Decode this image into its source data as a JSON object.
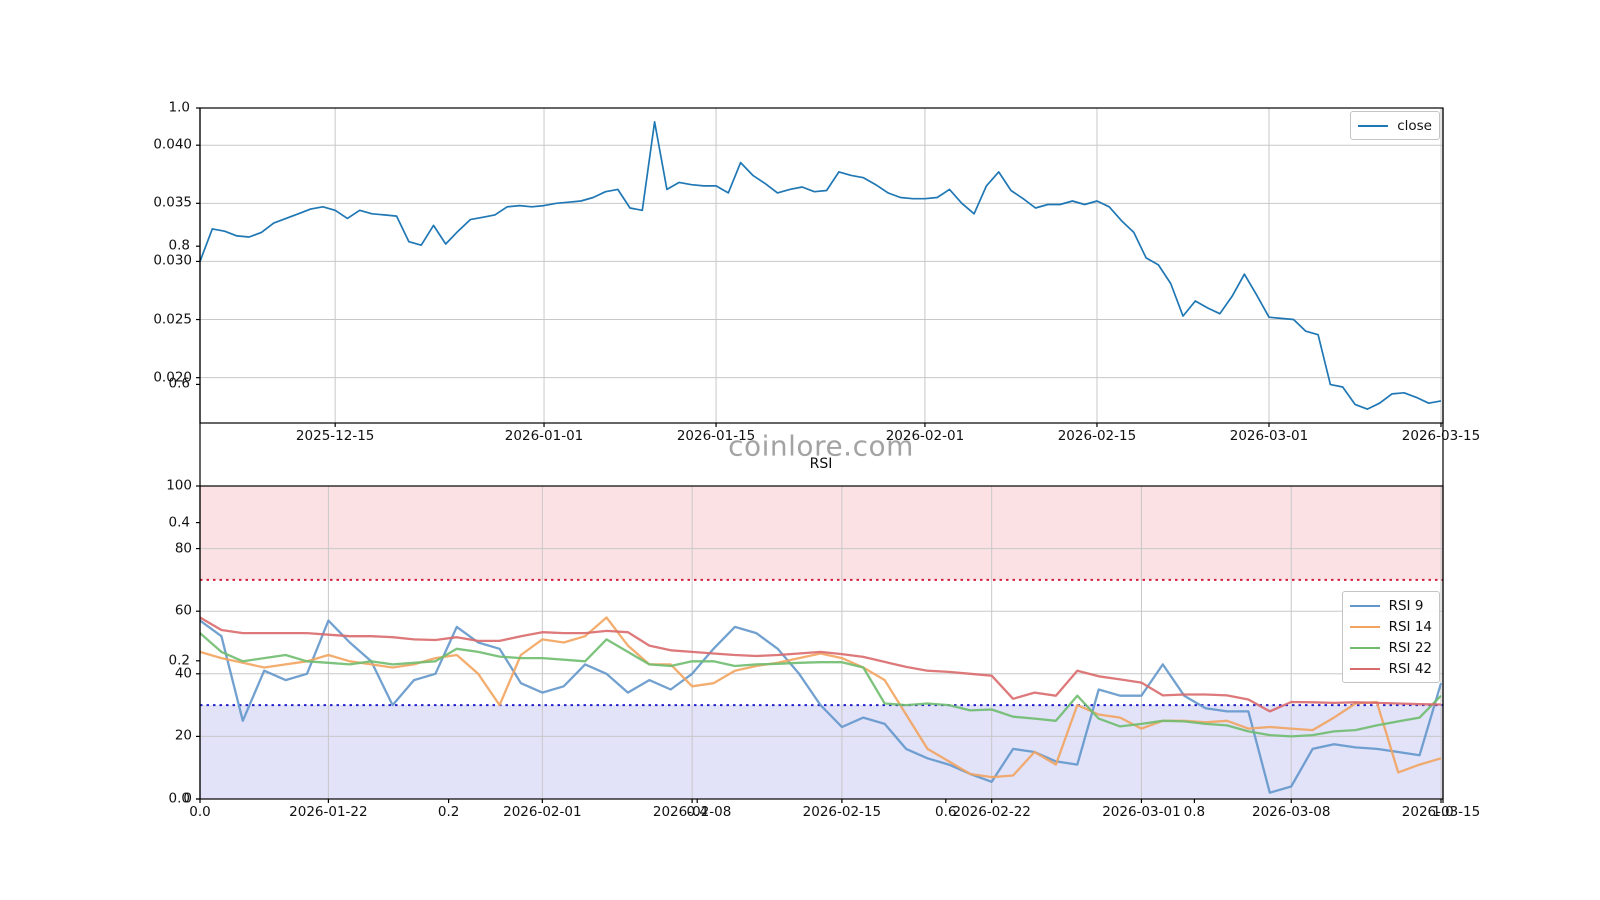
{
  "watermark": "coinlore.com",
  "colors": {
    "close": "#1f77b4",
    "rsi9": "#6397cb",
    "rsi14": "#f2a45f",
    "rsi22": "#6fbc6f",
    "rsi42": "#d96a6b",
    "overbought_line": "#d21f3c",
    "oversold_line": "#2121cc",
    "overbought_fill": "#fbe1e4",
    "oversold_fill": "#e2e2f8",
    "grid": "#c8c8c8",
    "spine": "#000000",
    "watermark_color": "#949494"
  },
  "overlay_axis": {
    "x_tick_labels": [
      "0.0",
      "0.2",
      "0.4",
      "0.6",
      "0.8",
      "1.0"
    ],
    "y_tick_labels": [
      "1.0",
      "0.8",
      "0.6",
      "0.4",
      "0.2",
      "0.0"
    ]
  },
  "chart_data": [
    {
      "type": "line",
      "title": "",
      "legend_position": "upper right",
      "x_start_date": "2025-12-04",
      "x_tick_labels": [
        "2025-12-15",
        "2026-01-01",
        "2026-01-15",
        "2026-02-01",
        "2026-02-15",
        "2026-03-01",
        "2026-03-15"
      ],
      "x_tick_days": [
        11,
        28,
        42,
        59,
        73,
        87,
        101
      ],
      "ylim": [
        0.0161,
        0.0432
      ],
      "y_ticks": [
        0.02,
        0.025,
        0.03,
        0.035,
        0.04
      ],
      "y_tick_labels": [
        "0.020",
        "0.025",
        "0.030",
        "0.035",
        "0.040"
      ],
      "grid": true,
      "series": [
        {
          "name": "close",
          "color": "#1f77b4",
          "values": [
            0.03,
            0.0328,
            0.0326,
            0.0322,
            0.0321,
            0.0325,
            0.0333,
            0.0337,
            0.0341,
            0.0345,
            0.0347,
            0.0344,
            0.0337,
            0.0344,
            0.0341,
            0.034,
            0.0339,
            0.0317,
            0.0314,
            0.0331,
            0.0315,
            0.0326,
            0.0336,
            0.0338,
            0.034,
            0.0347,
            0.0348,
            0.0347,
            0.0348,
            0.035,
            0.0351,
            0.0352,
            0.0355,
            0.036,
            0.0362,
            0.0346,
            0.0344,
            0.042,
            0.0362,
            0.0368,
            0.0366,
            0.0365,
            0.0365,
            0.0359,
            0.0385,
            0.0374,
            0.0367,
            0.0359,
            0.0362,
            0.0364,
            0.036,
            0.0361,
            0.0377,
            0.0374,
            0.0372,
            0.0366,
            0.0359,
            0.0355,
            0.0354,
            0.0354,
            0.0355,
            0.0362,
            0.035,
            0.0341,
            0.0365,
            0.0377,
            0.0361,
            0.0354,
            0.0346,
            0.0349,
            0.0349,
            0.0352,
            0.0349,
            0.0352,
            0.0347,
            0.0335,
            0.0325,
            0.0303,
            0.0297,
            0.0281,
            0.0253,
            0.0266,
            0.026,
            0.0255,
            0.027,
            0.0289,
            0.0271,
            0.0252,
            0.0251,
            0.025,
            0.024,
            0.0237,
            0.0194,
            0.0192,
            0.0177,
            0.0173,
            0.0178,
            0.0186,
            0.0187,
            0.0183,
            0.0178,
            0.018
          ]
        }
      ]
    },
    {
      "type": "line",
      "title": "RSI",
      "legend_position": "right",
      "x_start_date": "2026-01-16",
      "x_tick_labels": [
        "2026-01-22",
        "2026-02-01",
        "2026-02-08",
        "2026-02-15",
        "2026-02-22",
        "2026-03-01",
        "2026-03-08",
        "2026-03-15"
      ],
      "x_tick_days": [
        6,
        16,
        23,
        30,
        37,
        44,
        51,
        58
      ],
      "ylim": [
        0,
        100
      ],
      "y_ticks": [
        0,
        20,
        40,
        60,
        80,
        100
      ],
      "y_tick_labels": [
        "0",
        "20",
        "40",
        "60",
        "80",
        "100"
      ],
      "grid": true,
      "thresholds": {
        "overbought": 70,
        "oversold": 30
      },
      "series": [
        {
          "name": "RSI 9",
          "color": "#6397cb",
          "values": [
            57,
            52,
            25,
            41,
            38,
            40,
            57,
            50,
            44,
            30,
            38,
            40,
            55,
            50,
            48,
            37,
            34,
            36,
            43,
            40,
            34,
            38,
            35,
            40,
            48,
            55,
            53,
            48,
            40,
            30,
            23,
            26,
            24,
            16,
            13,
            11,
            8,
            5.5,
            16,
            15,
            12,
            11,
            35,
            33,
            33,
            43,
            33,
            29,
            28,
            28,
            2,
            4,
            16,
            17.5,
            16.5,
            16,
            15,
            14,
            37
          ]
        },
        {
          "name": "RSI 14",
          "color": "#f2a45f",
          "values": [
            47,
            45,
            43.5,
            42,
            43,
            44,
            46,
            44,
            43,
            42,
            43,
            45,
            46,
            40,
            30,
            46,
            51,
            50,
            52,
            58,
            49,
            43,
            43,
            36,
            37,
            41,
            42.5,
            43.5,
            45,
            46.5,
            45,
            42,
            38,
            27,
            16,
            12,
            8,
            7,
            7.5,
            15,
            11,
            30,
            27,
            26,
            22.5,
            25,
            25,
            24.5,
            25,
            22.5,
            23,
            22.5,
            22,
            26,
            30.5,
            31,
            8.5,
            11,
            13
          ]
        },
        {
          "name": "RSI 22",
          "color": "#6fbc6f",
          "values": [
            53,
            47,
            44,
            45,
            46,
            44,
            43.5,
            43,
            44,
            43,
            43.5,
            44,
            48,
            47,
            45.5,
            45,
            45,
            44.5,
            44,
            51,
            47,
            43,
            42.5,
            44,
            44,
            42.5,
            43,
            43.2,
            43.5,
            43.7,
            43.7,
            42,
            30.5,
            30,
            30.5,
            30,
            28.3,
            28.6,
            26.3,
            25.7,
            25,
            33,
            25.7,
            23.2,
            24,
            25,
            24.8,
            24,
            23.5,
            21.6,
            20.4,
            20,
            20.4,
            21.6,
            22,
            23.5,
            24.8,
            26,
            33
          ]
        },
        {
          "name": "RSI 42",
          "color": "#d96a6b",
          "values": [
            58,
            54,
            53,
            53,
            53,
            53,
            52.5,
            52,
            52,
            51.7,
            51,
            50.8,
            51.7,
            50.5,
            50.5,
            52,
            53.3,
            53,
            53,
            53.7,
            53.3,
            49,
            47.5,
            47,
            46.5,
            46,
            45.7,
            46,
            46.5,
            47,
            46.3,
            45.4,
            43.8,
            42.2,
            41,
            40.6,
            40,
            39.4,
            32,
            34,
            33,
            41,
            39.2,
            38.2,
            37.2,
            33.1,
            33.4,
            33.4,
            33.1,
            31.8,
            28,
            31,
            30.9,
            30.7,
            30.9,
            30.7,
            30.5,
            30.3,
            30.2
          ]
        }
      ]
    }
  ]
}
